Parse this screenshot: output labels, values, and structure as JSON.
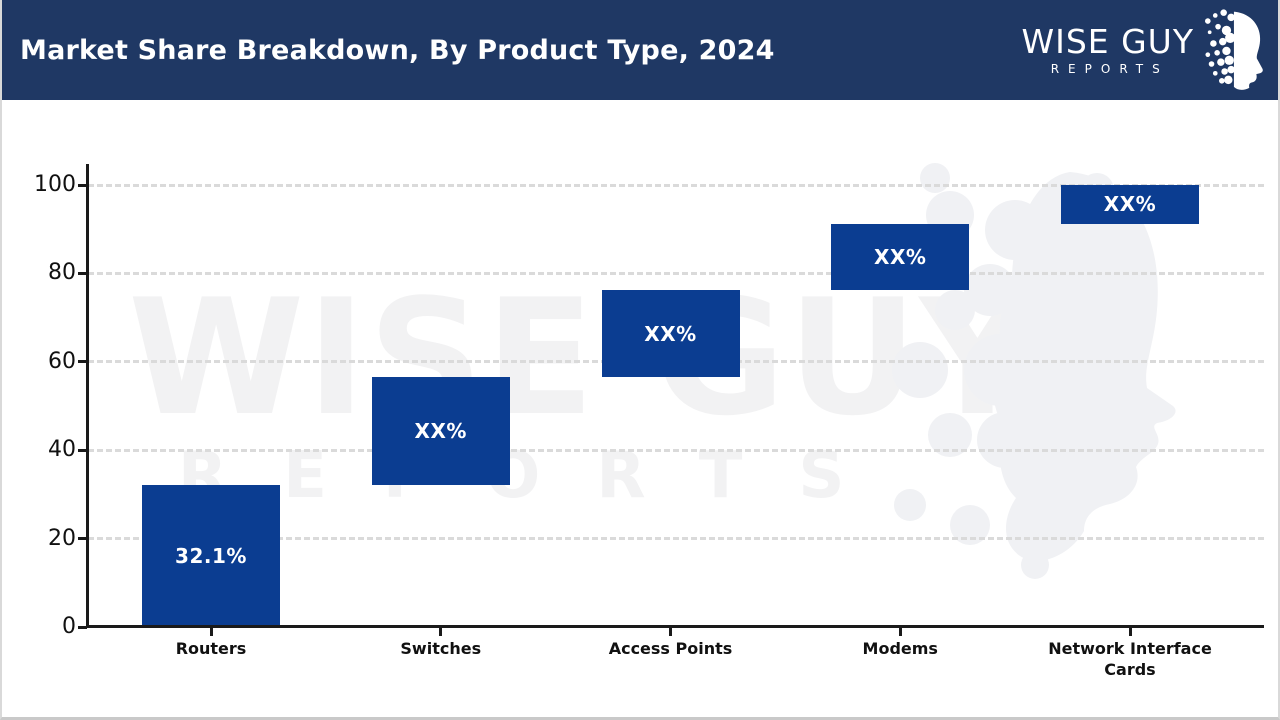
{
  "header": {
    "title": "Market Share Breakdown, By Product Type, 2024",
    "bg_color": "#1f3864",
    "logo": {
      "line1": "WISE GUY",
      "line2": "REPORTS"
    }
  },
  "watermark": {
    "line1": "WISE GUY",
    "line2": "REPORTS"
  },
  "colors": {
    "bar": "#0b3d91",
    "bar_label": "#ffffff",
    "axis": "#1a1a1a",
    "gridline": "#dadada",
    "watermark": "#f2f2f3"
  },
  "chart_data": {
    "type": "bar",
    "variant": "waterfall",
    "title": "Market Share Breakdown, By Product Type, 2024",
    "categories": [
      "Routers",
      "Switches",
      "Access Points",
      "Modems",
      "Network Interface Cards"
    ],
    "segments": [
      {
        "category": "Routers",
        "start": 0,
        "end": 32.1,
        "label": "32.1%"
      },
      {
        "category": "Switches",
        "start": 32.1,
        "end": 56.6,
        "label": "XX%"
      },
      {
        "category": "Access Points",
        "start": 56.6,
        "end": 76.2,
        "label": "XX%"
      },
      {
        "category": "Modems",
        "start": 76.2,
        "end": 91.2,
        "label": "XX%"
      },
      {
        "category": "Network Interface Cards",
        "start": 91.2,
        "end": 100,
        "label": "XX%"
      }
    ],
    "ylabel": "",
    "xlabel": "",
    "yticks": [
      0,
      20,
      40,
      60,
      80,
      100
    ],
    "ylim": [
      0,
      105
    ],
    "grid": true,
    "legend": false,
    "bar_color": "#0b3d91",
    "value_label_color": "#ffffff"
  }
}
